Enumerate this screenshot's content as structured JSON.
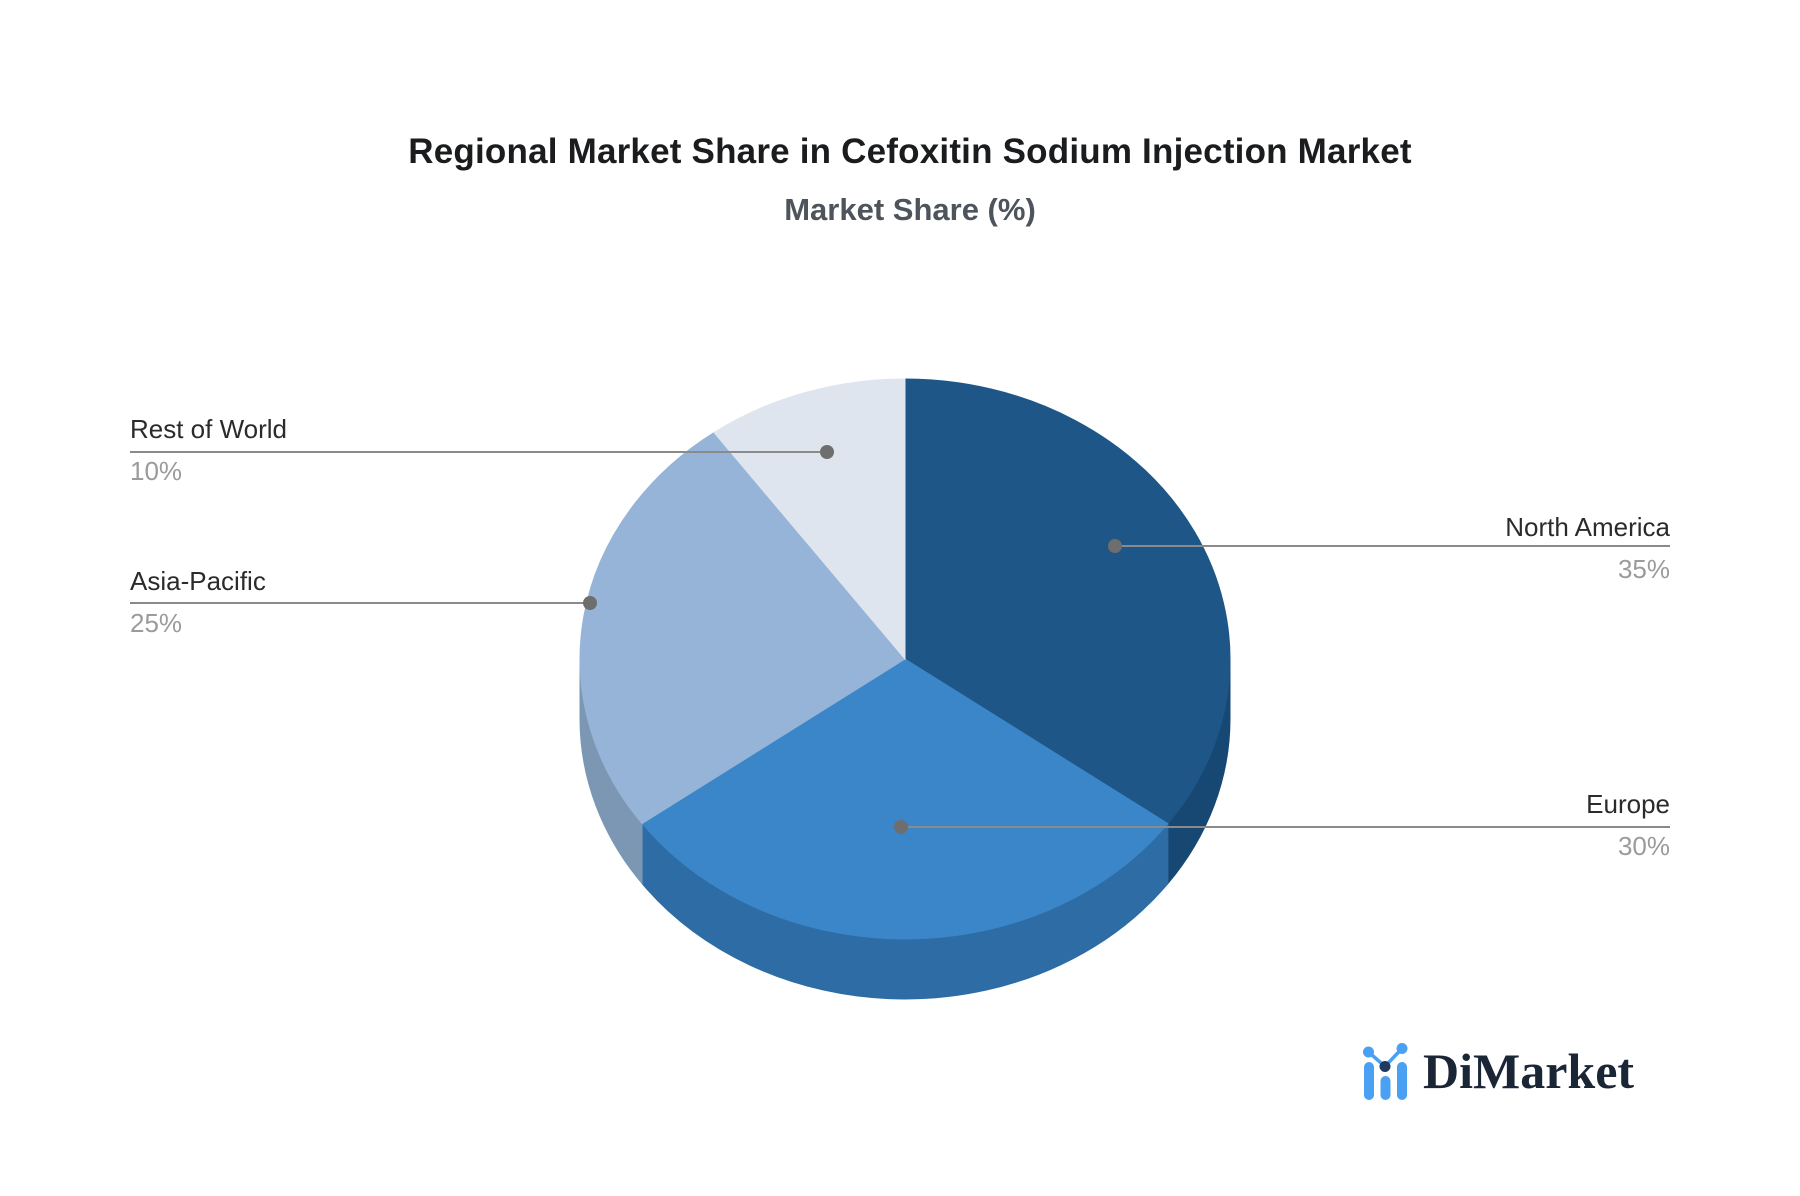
{
  "header": {
    "title": "Regional Market Share in Cefoxitin Sodium Injection Market",
    "subtitle": "Market Share (%)"
  },
  "chart_data": {
    "type": "pie",
    "style": "pie-3d",
    "title": "Regional Market Share in Cefoxitin Sodium Injection Market",
    "subtitle": "Market Share (%)",
    "unit": "%",
    "start_angle": "12-oclock",
    "direction": "clockwise",
    "legend_position": "callout-labels",
    "labels": [
      "North America",
      "Europe",
      "Asia-Pacific",
      "Rest of World"
    ],
    "values": [
      35,
      30,
      25,
      10
    ],
    "display_values": [
      "35%",
      "30%",
      "25%",
      "10%"
    ],
    "colors": [
      "#1E5687",
      "#3A86C8",
      "#96B4D7",
      "#DFE5EE"
    ],
    "side_colors": [
      "#174873",
      "#2D6CA4",
      "#7B97B4",
      "#C3CCD9"
    ],
    "leader_color": "#8A8A8A",
    "dot_color": "#6E6E6E",
    "label_color": "#2B2B2B",
    "value_color": "#9B9B9B"
  },
  "logo": {
    "text": "DiMarket",
    "icon": "bar-chart-sparkline-icon",
    "accent_color": "#4AA0F2",
    "mid_dot_color": "#1E3A5F",
    "text_color": "#1A2536"
  }
}
